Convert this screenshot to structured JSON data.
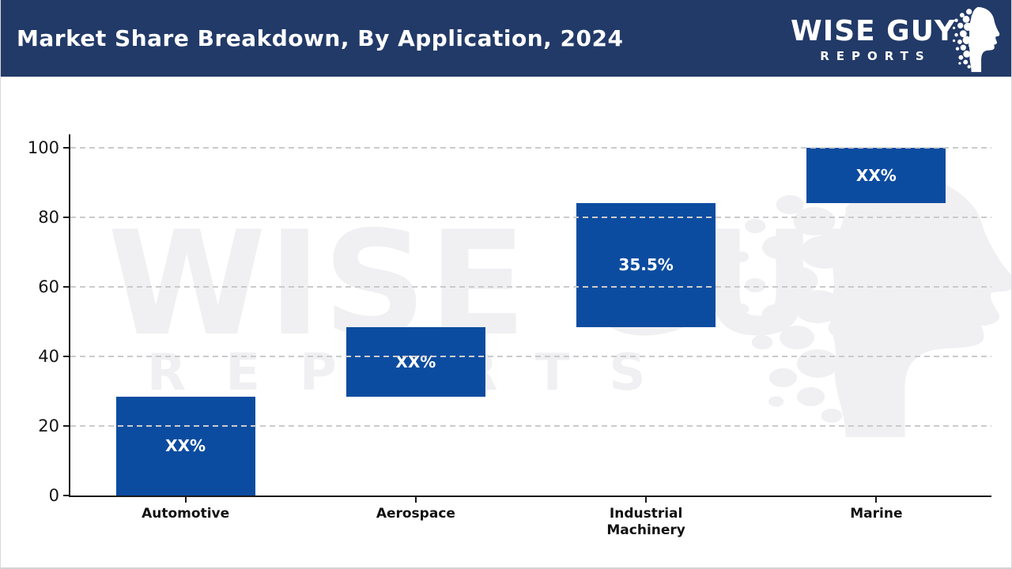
{
  "header": {
    "title": "Market Share Breakdown, By Application, 2024",
    "bg_color": "#223A68",
    "logo": {
      "line1": "WISE GUY",
      "line2": "REPORTS"
    }
  },
  "watermark": {
    "line1": "WISE GUY",
    "line2": "REPORTS"
  },
  "chart_data": {
    "type": "bar",
    "variant": "waterfall",
    "title": "Market Share Breakdown, By Application, 2024",
    "categories": [
      "Automotive",
      "Aerospace",
      "Industrial Machinery",
      "Marine"
    ],
    "segments": [
      {
        "category": "Automotive",
        "start": 0,
        "end": 28.5,
        "label": "XX%"
      },
      {
        "category": "Aerospace",
        "start": 28.5,
        "end": 48.5,
        "label": "XX%"
      },
      {
        "category": "Industrial Machinery",
        "start": 48.5,
        "end": 84,
        "label": "35.5%"
      },
      {
        "category": "Marine",
        "start": 84,
        "end": 100,
        "label": "XX%"
      }
    ],
    "xlabel": "",
    "ylabel": "",
    "ylim": [
      0,
      100
    ],
    "yticks": [
      0,
      20,
      40,
      60,
      80,
      100
    ],
    "grid": "horizontal-dashed",
    "legend": "none",
    "bar_color": "#0C4CA0",
    "bar_label_color": "#FFFFFF",
    "gridline_color": "#CBCBCB",
    "axis_color": "#1a1a1a"
  }
}
